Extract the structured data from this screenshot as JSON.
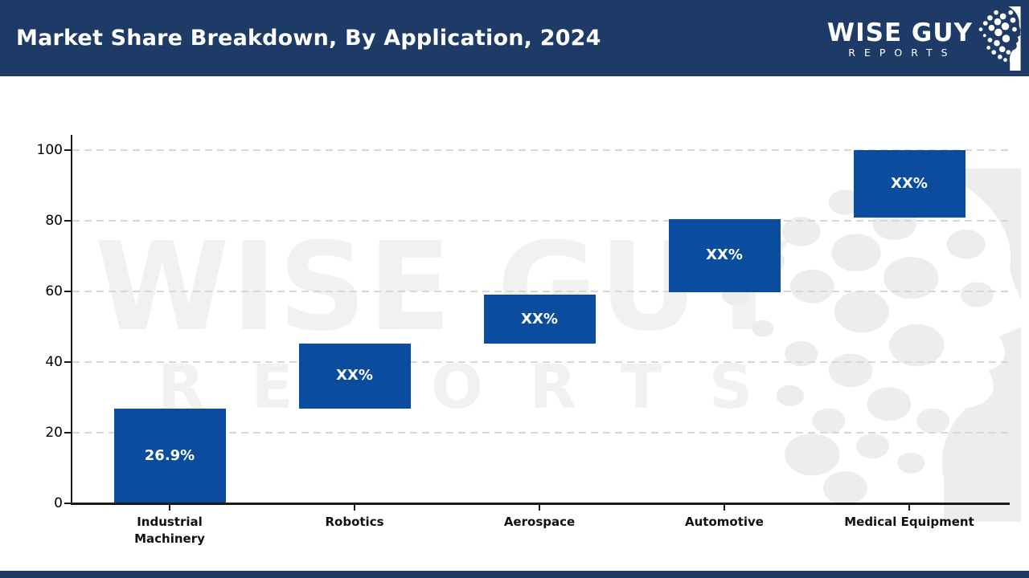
{
  "header": {
    "title": "Market Share Breakdown, By Application, 2024",
    "logo": {
      "name": "WISE GUY",
      "tagline": "REPORTS"
    }
  },
  "watermark": {
    "name": "WISE GUY",
    "tagline": "REPORTS"
  },
  "chart_data": {
    "type": "bar",
    "subtype": "waterfall",
    "title": "Market Share Breakdown, By Application, 2024",
    "categories": [
      "Industrial\nMachinery",
      "Robotics",
      "Aerospace",
      "Automotive",
      "Medical Equipment"
    ],
    "bars": [
      {
        "category": "Industrial Machinery",
        "start": 0,
        "end": 26.9,
        "label": "26.9%"
      },
      {
        "category": "Robotics",
        "start": 26.9,
        "end": 45.2,
        "label": "XX%"
      },
      {
        "category": "Aerospace",
        "start": 45.2,
        "end": 59.1,
        "label": "XX%"
      },
      {
        "category": "Automotive",
        "start": 59.8,
        "end": 80.5,
        "label": "XX%"
      },
      {
        "category": "Medical Equipment",
        "start": 80.9,
        "end": 100,
        "label": "XX%"
      }
    ],
    "yticks": [
      0,
      20,
      40,
      60,
      80,
      100
    ],
    "ylim": [
      0,
      104
    ],
    "xlabel": "",
    "ylabel": "",
    "grid": "horizontal-dashed",
    "legend": "none",
    "bar_color": "#0b4c9f",
    "bar_label_color": "#ffffff",
    "axis_color": "#1a1a1a",
    "gridline_color": "#d8d8d8",
    "header_color": "#1e3a66"
  }
}
